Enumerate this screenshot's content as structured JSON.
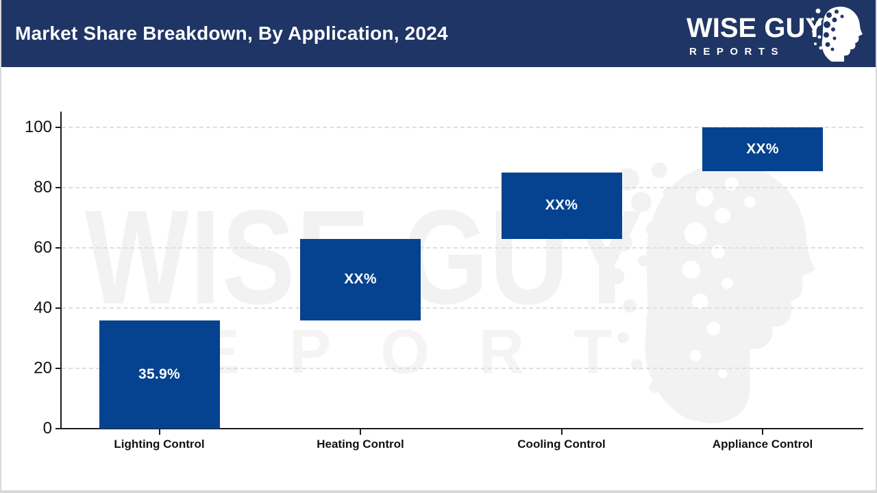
{
  "header": {
    "title": "Market Share Breakdown, By Application, 2024",
    "bg_color": "#1f3565",
    "logo": {
      "line1": "WISE GUY",
      "line2": "REPORTS"
    }
  },
  "watermark": {
    "line1": "WISE GUY",
    "line2": "REPORTS"
  },
  "chart_data": {
    "type": "bar",
    "subtype": "floating-segment (waterfall style market share breakdown)",
    "title": "Market Share Breakdown, By Application, 2024",
    "categories": [
      "Lighting Control",
      "Heating Control",
      "Cooling Control",
      "Appliance Control"
    ],
    "segments": [
      {
        "category": "Lighting Control",
        "start": 0,
        "end": 35.9,
        "label": "35.9%"
      },
      {
        "category": "Heating Control",
        "start": 36,
        "end": 63,
        "label": "XX%"
      },
      {
        "category": "Cooling Control",
        "start": 63,
        "end": 85,
        "label": "XX%"
      },
      {
        "category": "Appliance Control",
        "start": 85.5,
        "end": 100,
        "label": "XX%"
      }
    ],
    "ylim": [
      0,
      100
    ],
    "yticks": [
      0,
      20,
      40,
      60,
      80,
      100
    ],
    "grid": "horizontal dashed",
    "bar_color": "#05428f",
    "bar_label_color": "#ffffff",
    "axis_color": "#1c1c1c",
    "gridline_color": "#dedede"
  }
}
